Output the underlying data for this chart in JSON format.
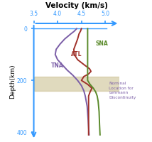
{
  "title": "Velocity (km/s)",
  "ylabel": "Depth(km)",
  "xlim": [
    3.5,
    5.3
  ],
  "ylim": [
    430,
    -20
  ],
  "xticks": [
    3.5,
    4.0,
    4.5,
    5.0
  ],
  "yticks": [
    0,
    200,
    400
  ],
  "lehmann_band": [
    185,
    240
  ],
  "lehmann_color": "#c8bc8a",
  "lehmann_label": "Nominal\nLocation for\nLehmann\nDiscontinuity",
  "TNA_color": "#7B5EA7",
  "ATL_color": "#A0312A",
  "SNA_color": "#5a8a2a",
  "axis_color": "#3399ff",
  "TNA_depth": [
    0,
    10,
    20,
    40,
    60,
    80,
    100,
    120,
    140,
    160,
    180,
    200,
    220,
    240,
    260,
    300,
    350,
    410
  ],
  "TNA_vel": [
    4.4,
    4.35,
    4.28,
    4.15,
    4.05,
    3.97,
    3.95,
    4.0,
    4.1,
    4.2,
    4.32,
    4.42,
    4.5,
    4.55,
    4.58,
    4.62,
    4.64,
    4.66
  ],
  "ATL_depth": [
    0,
    10,
    20,
    40,
    60,
    80,
    100,
    120,
    140,
    155,
    165,
    175,
    185,
    200,
    215,
    230,
    245,
    260,
    300,
    370,
    410
  ],
  "ATL_vel": [
    4.5,
    4.48,
    4.45,
    4.42,
    4.38,
    4.34,
    4.35,
    4.42,
    4.56,
    4.67,
    4.7,
    4.65,
    4.55,
    4.5,
    4.63,
    4.72,
    4.68,
    4.65,
    4.65,
    4.65,
    4.65
  ],
  "SNA_depth": [
    0,
    10,
    30,
    60,
    100,
    150,
    200,
    215,
    230,
    245,
    260,
    280,
    320,
    370,
    410
  ],
  "SNA_vel": [
    4.63,
    4.63,
    4.63,
    4.63,
    4.63,
    4.63,
    4.63,
    4.68,
    4.75,
    4.8,
    4.83,
    4.85,
    4.87,
    4.88,
    4.89
  ]
}
